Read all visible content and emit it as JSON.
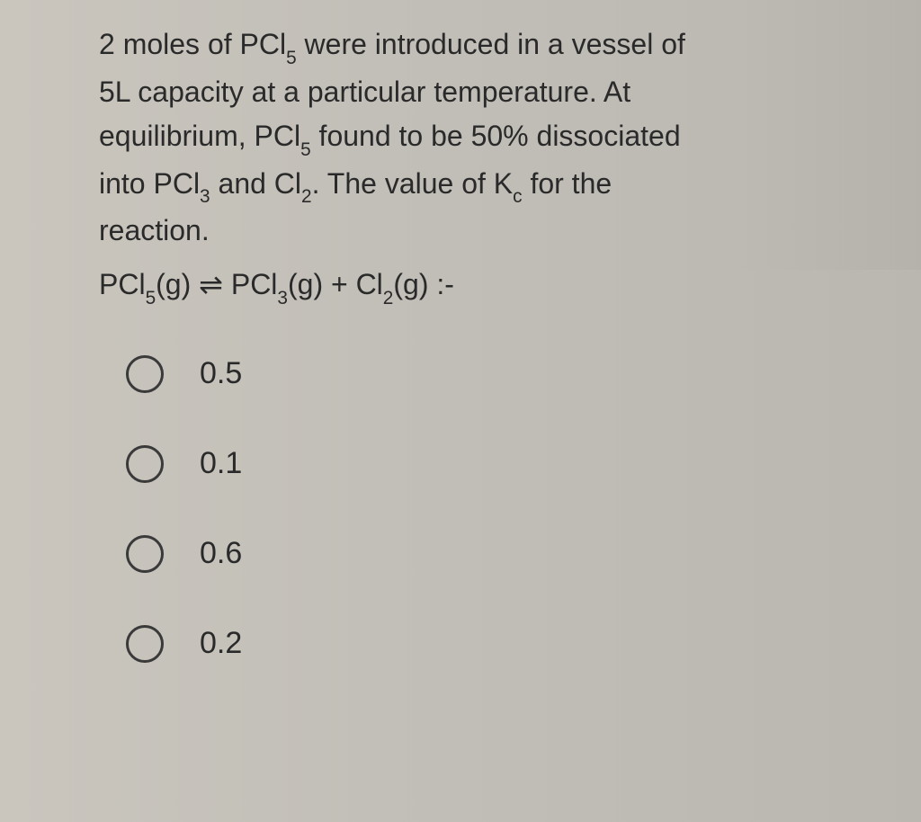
{
  "question": {
    "line1_prefix": "2 moles of PCl",
    "line1_sub1": "5",
    "line1_mid": " were introduced in a vessel of",
    "line2": "5L capacity at a particular temperature. At",
    "line3_prefix": "equilibrium, PCl",
    "line3_sub1": "5",
    "line3_mid": " found to be 50% dissociated",
    "line4_prefix": "into PCl",
    "line4_sub1": "3",
    "line4_mid1": " and Cl",
    "line4_sub2": "2",
    "line4_mid2": ". The value of K",
    "line4_sub3": "c",
    "line4_end": " for the",
    "line5": "reaction."
  },
  "equation": {
    "p1": "PCl",
    "s1": "5",
    "p2": "(g) ⇌ PCl",
    "s2": "3",
    "p3": "(g) + Cl",
    "s3": "2",
    "p4": "(g) :-"
  },
  "options": [
    {
      "label": "0.5"
    },
    {
      "label": "0.1"
    },
    {
      "label": "0.6"
    },
    {
      "label": "0.2"
    }
  ],
  "styling": {
    "background_color": "#c2bfb8",
    "text_color": "#2a2a2a",
    "radio_border_color": "#3a3a3a",
    "question_fontsize": 32,
    "option_fontsize": 34,
    "radio_size": 42
  }
}
